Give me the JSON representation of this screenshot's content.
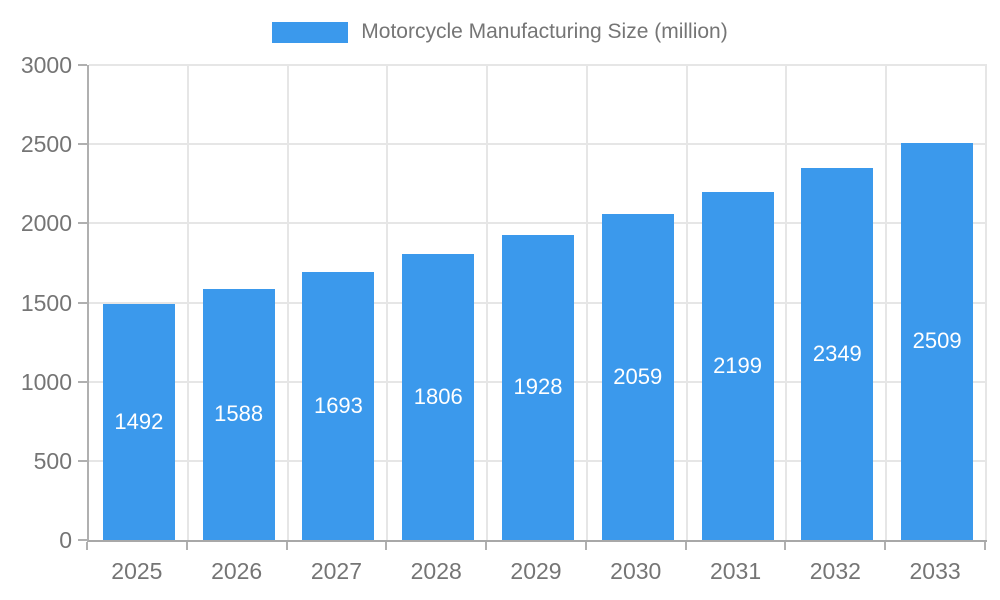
{
  "legend": {
    "label": "Motorcycle Manufacturing Size (million)"
  },
  "colors": {
    "bar": "#3b99ec",
    "axis_text": "#757575",
    "grid": "#e6e6e6",
    "axis_line": "#b0b0b0",
    "value_label": "#ffffff",
    "background": "#ffffff"
  },
  "chart_data": {
    "type": "bar",
    "title": "Motorcycle Manufacturing Size (million)",
    "categories": [
      "2025",
      "2026",
      "2027",
      "2028",
      "2029",
      "2030",
      "2031",
      "2032",
      "2033"
    ],
    "values": [
      1492,
      1588,
      1693,
      1806,
      1928,
      2059,
      2199,
      2349,
      2509
    ],
    "xlabel": "",
    "ylabel": "",
    "ylim": [
      0,
      3000
    ],
    "yticks": [
      0,
      500,
      1000,
      1500,
      2000,
      2500,
      3000
    ],
    "grid": true,
    "legend_position": "top-center",
    "value_labels": "centered-inside-bars"
  }
}
